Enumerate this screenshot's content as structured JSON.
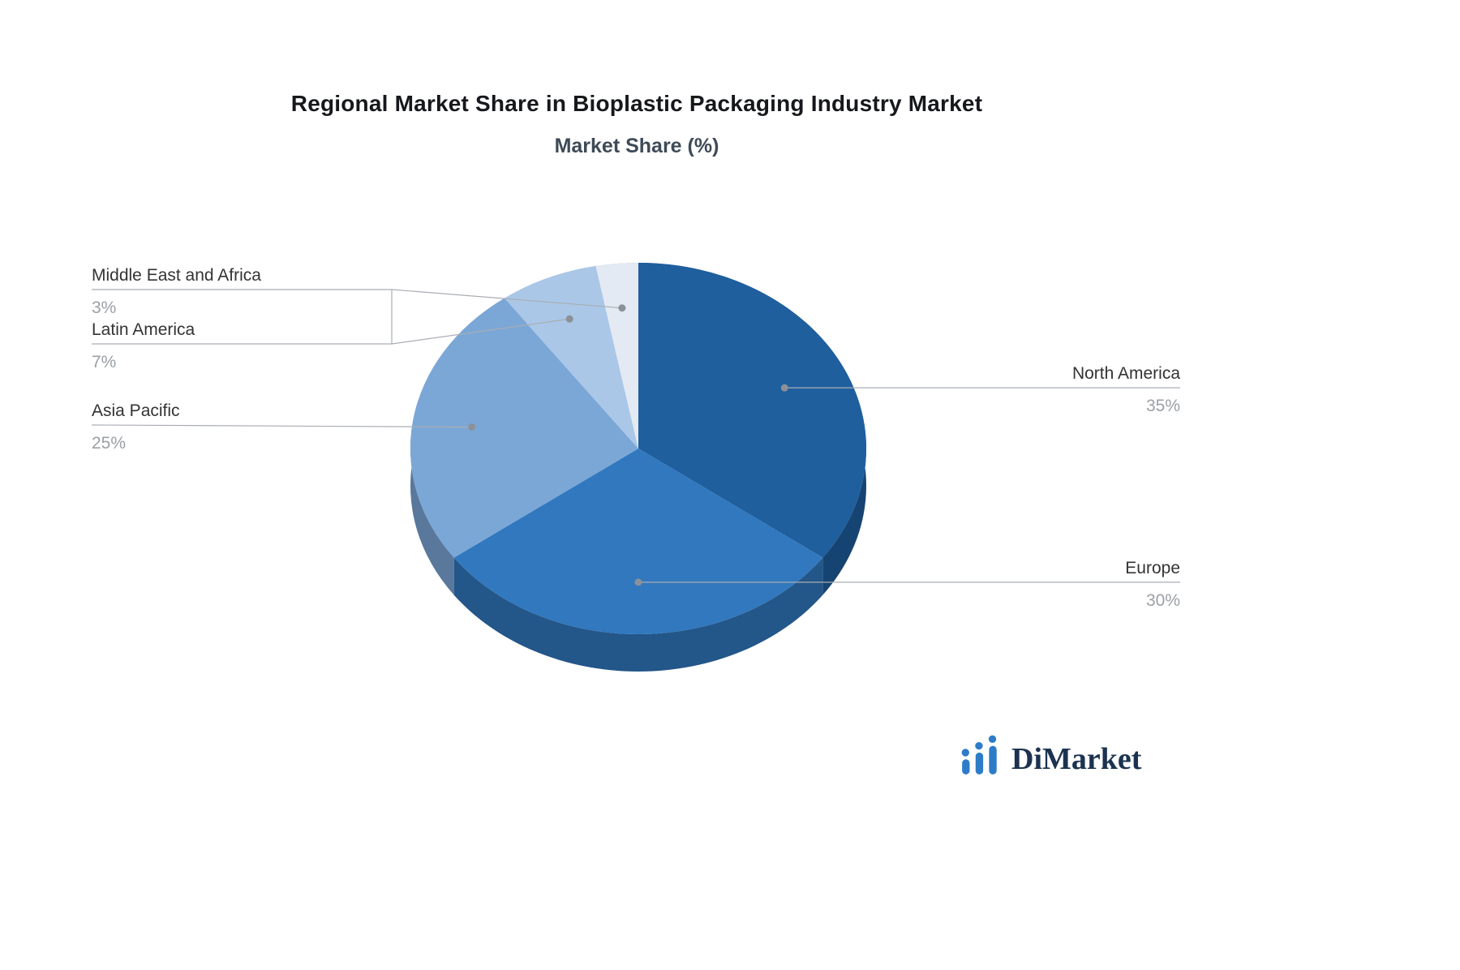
{
  "title": "Regional Market Share in Bioplastic Packaging Industry Market",
  "subtitle": "Market Share (%)",
  "chart_data": {
    "type": "pie",
    "style": "3d",
    "title": "Regional Market Share in Bioplastic Packaging Industry Market",
    "subtitle": "Market Share (%)",
    "unit": "%",
    "direction": "clockwise",
    "start_angle_deg": 0,
    "legend": "none",
    "categories": [
      "North America",
      "Europe",
      "Asia Pacific",
      "Latin America",
      "Middle East and Africa"
    ],
    "values": [
      35,
      30,
      25,
      7,
      3
    ],
    "labels": [
      "35%",
      "30%",
      "25%",
      "7%",
      "3%"
    ],
    "colors": [
      "#1F5F9E",
      "#3178BE",
      "#7BA7D7",
      "#AAC7E7",
      "#E3EAF3"
    ],
    "label_text_color": "#333333",
    "value_text_color": "#9AA0A6",
    "leader_line_color": "#A9ADB3",
    "leader_dot_color": "#8C9199"
  },
  "logo": {
    "text": "DiMarket",
    "icon": "bar-chart-logo-icon",
    "text_color": "#1b3350",
    "icon_color": "#2E7CC7"
  }
}
